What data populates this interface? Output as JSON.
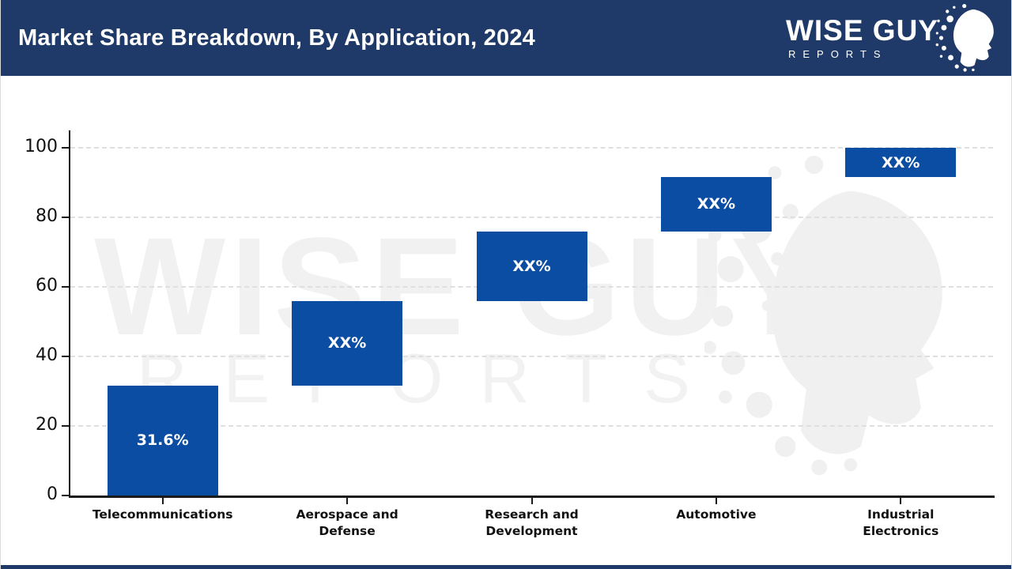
{
  "header": {
    "title": "Market Share Breakdown, By Application, 2024",
    "bg_color": "#1F3A68",
    "logo": {
      "wordmark": "WISE GUY",
      "subtext": "REPORTS"
    }
  },
  "watermark": {
    "line1": "WISE GUY",
    "line2": "REPORTS"
  },
  "chart_data": {
    "type": "bar",
    "subtype": "stepped-waterfall",
    "title": "Market Share Breakdown, By Application, 2024",
    "categories": [
      "Telecommunications",
      "Aerospace and\nDefense",
      "Research and\nDevelopment",
      "Automotive",
      "Industrial\nElectronics"
    ],
    "segments": [
      {
        "category": "Telecommunications",
        "start": 0,
        "end": 31.6,
        "label": "31.6%"
      },
      {
        "category": "Aerospace and Defense",
        "start": 31.6,
        "end": 56,
        "label": "XX%"
      },
      {
        "category": "Research and Development",
        "start": 56,
        "end": 76,
        "label": "XX%"
      },
      {
        "category": "Automotive",
        "start": 76,
        "end": 91.5,
        "label": "XX%"
      },
      {
        "category": "Industrial Electronics",
        "start": 91.5,
        "end": 100,
        "label": "XX%"
      }
    ],
    "bar_color": "#0B4DA2",
    "bar_label_color": "#FFFFFF",
    "axis_color": "#1a1a1a",
    "grid_color": "#dfdfdf",
    "yticks": [
      0,
      20,
      40,
      60,
      80,
      100
    ],
    "ylim": [
      0,
      105
    ],
    "xlabel": "",
    "ylabel": "",
    "grid": "horizontal-dashed",
    "legend_position": "none"
  },
  "footer": {
    "bg_color": "#1F3A68"
  }
}
